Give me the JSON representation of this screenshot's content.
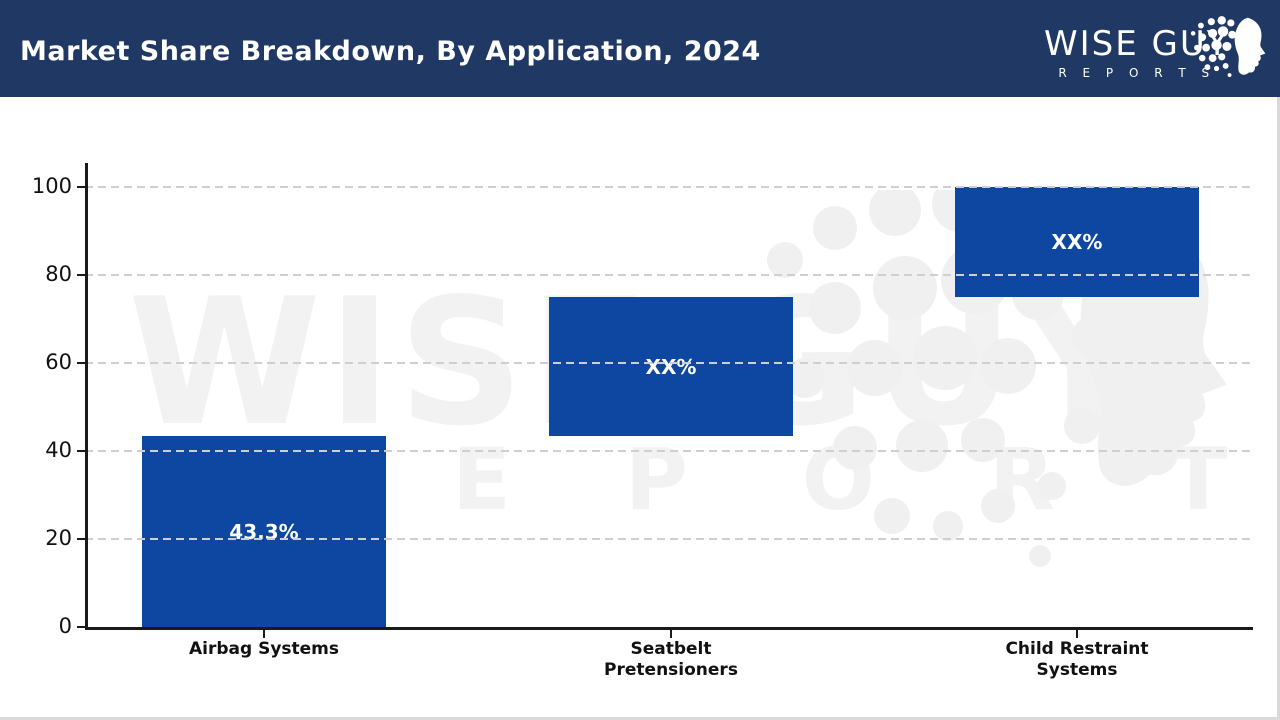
{
  "header": {
    "title": "Market Share Breakdown, By Application, 2024",
    "background": "#1f3864",
    "logo": {
      "line1": "WISE GUY",
      "line2": "R E P O R T S"
    }
  },
  "watermark": {
    "line1": "WISE GUY",
    "line2": "R E P O R T S"
  },
  "chart_data": {
    "type": "bar",
    "variant": "waterfall-stacked-breakdown",
    "title": "Market Share Breakdown, By Application, 2024",
    "categories": [
      "Airbag Systems",
      "Seatbelt\nPretensioners",
      "Child Restraint\nSystems"
    ],
    "bars": [
      {
        "category": "Airbag Systems",
        "start": 0,
        "end": 43.3,
        "value_label": "43.3%"
      },
      {
        "category": "Seatbelt Pretensioners",
        "start": 43.3,
        "end": 75,
        "value_label": "XX%"
      },
      {
        "category": "Child Restraint Systems",
        "start": 75,
        "end": 100,
        "value_label": "XX%"
      }
    ],
    "yticks": [
      0,
      20,
      40,
      60,
      80,
      100
    ],
    "ylim": [
      0,
      105
    ],
    "xlabel": "",
    "ylabel": "",
    "grid": "horizontal-dashed",
    "legend": false,
    "bar_color": "#0d47a1",
    "value_label_color": "#ffffff"
  }
}
